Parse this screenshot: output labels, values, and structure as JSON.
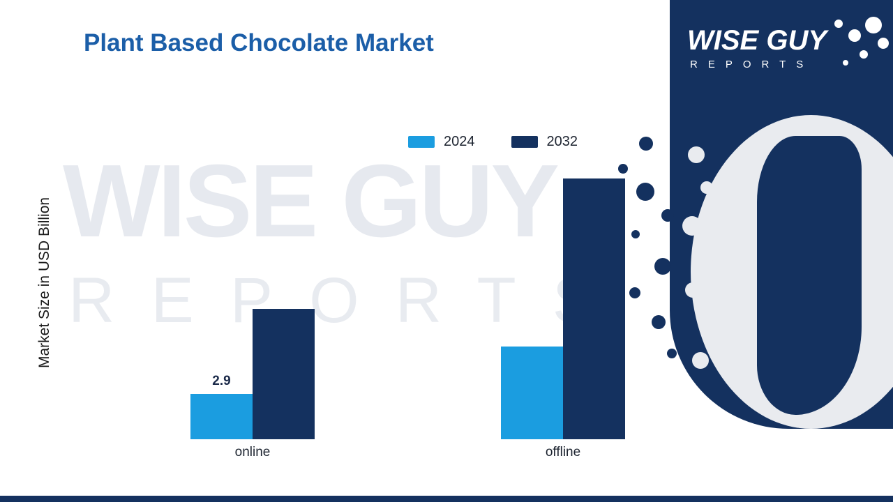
{
  "title": "Plant Based Chocolate Market",
  "ylabel": "Market Size in USD Billion",
  "watermark": {
    "line1": "WISE GUY",
    "line2": "REPORTS"
  },
  "logo": {
    "line1": "WISE GUY",
    "line2": "REPORTS"
  },
  "colors": {
    "accent_blue": "#1b9de0",
    "navy": "#14315f",
    "title_blue": "#1b5ea8",
    "watermark_gray": "#d3d8e2"
  },
  "chart_data": {
    "type": "bar",
    "title": "Plant Based Chocolate Market",
    "ylabel": "Market Size in USD Billion",
    "xlabel": "",
    "categories": [
      "online",
      "offline"
    ],
    "series": [
      {
        "name": "2024",
        "color_key": "accent_blue",
        "values": [
          2.9,
          5.9
        ]
      },
      {
        "name": "2032",
        "color_key": "navy",
        "values": [
          8.3,
          16.6
        ]
      }
    ],
    "value_labels": [
      {
        "category": "online",
        "series": "2024",
        "text": "2.9"
      }
    ],
    "ylim": [
      0,
      18
    ],
    "grid": false,
    "legend_position": "top-center"
  }
}
